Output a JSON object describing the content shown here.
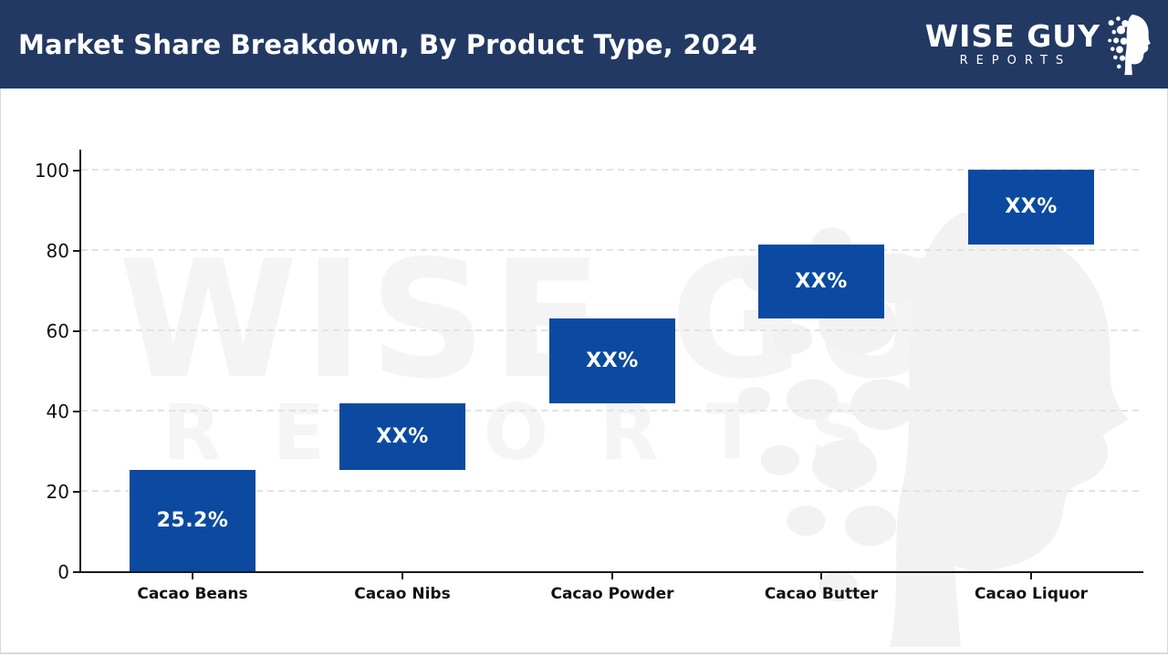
{
  "header": {
    "title": "Market Share Breakdown, By Product Type, 2024",
    "bg_color": "#223963",
    "logo": {
      "name": "WISE GUY",
      "sub": "REPORTS"
    }
  },
  "watermark": {
    "line1": "WISE GUY",
    "line2": "REPORTS"
  },
  "chart_data": {
    "type": "bar",
    "variant": "waterfall",
    "title": "Market Share Breakdown, By Product Type, 2024",
    "categories": [
      "Cacao Beans",
      "Cacao Nibs",
      "Cacao Powder",
      "Cacao Butter",
      "Cacao Liquor"
    ],
    "series": [
      {
        "name": "Market Share",
        "segments": [
          {
            "from": 0,
            "to": 25.2,
            "label": "25.2%"
          },
          {
            "from": 25.2,
            "to": 41.8,
            "label": "XX%"
          },
          {
            "from": 41.8,
            "to": 63,
            "label": "XX%"
          },
          {
            "from": 63,
            "to": 81.4,
            "label": "XX%"
          },
          {
            "from": 81.4,
            "to": 100,
            "label": "XX%"
          }
        ]
      }
    ],
    "y_ticks": [
      0,
      20,
      40,
      60,
      80,
      100
    ],
    "ylim": [
      0,
      105
    ],
    "xlabel": "",
    "ylabel": "",
    "grid": "horizontal-dashed",
    "legend_position": "none",
    "bar_color": "#0b4aa0",
    "bar_label_color": "#ffffff",
    "axis_color": "#1a1a1a",
    "grid_color": "#e3e3e3"
  },
  "colors": {
    "header_bg": "#223963",
    "watermark": "#f4f4f4",
    "edge_rule": "#d9d9d9"
  }
}
